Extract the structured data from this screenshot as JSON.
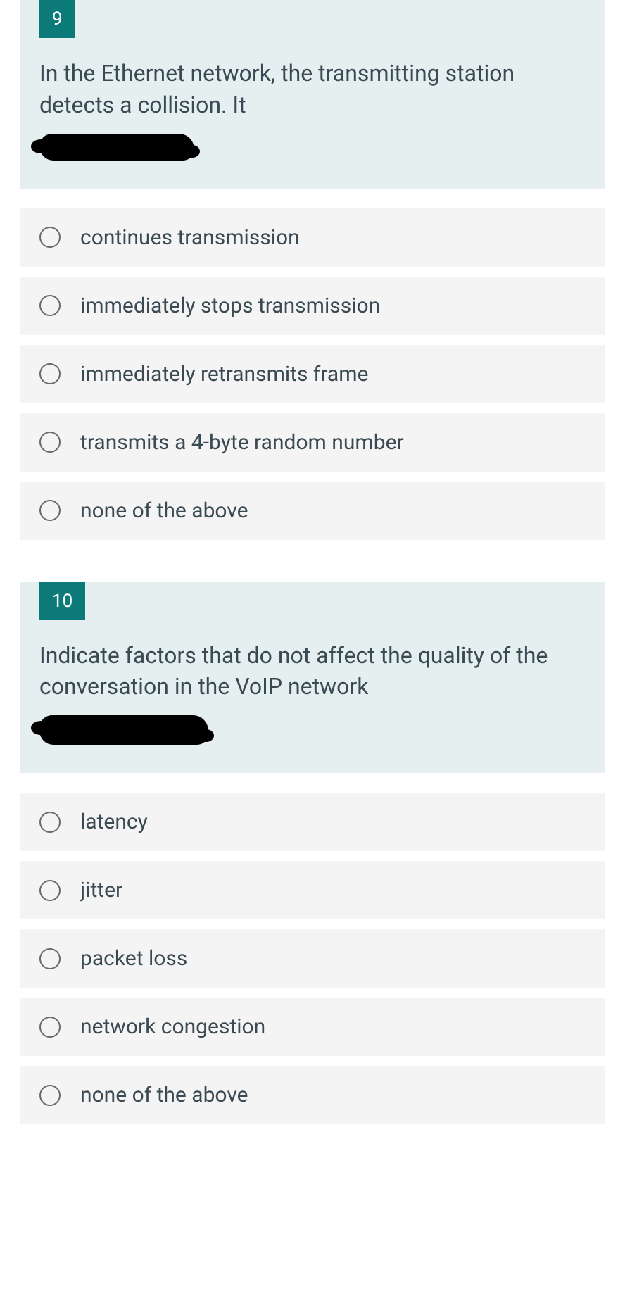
{
  "questions": [
    {
      "number": "9",
      "text": "In the Ethernet network, the transmitting station detects a collision. It",
      "options": [
        "continues transmission",
        "immediately stops transmission",
        "immediately retransmits frame",
        "transmits a 4-byte random number",
        "none of the above"
      ]
    },
    {
      "number": "10",
      "text": "Indicate factors that do not affect the quality of the conversation in the VoIP network",
      "options": [
        "latency",
        "jitter",
        "packet loss",
        "network congestion",
        "none of the above"
      ]
    }
  ],
  "colors": {
    "badge_bg": "#0d7a7a",
    "header_bg": "#e5eff0",
    "option_bg": "#f4f4f4",
    "text": "#3a4a52",
    "radio_border": "#6a6a6a"
  }
}
